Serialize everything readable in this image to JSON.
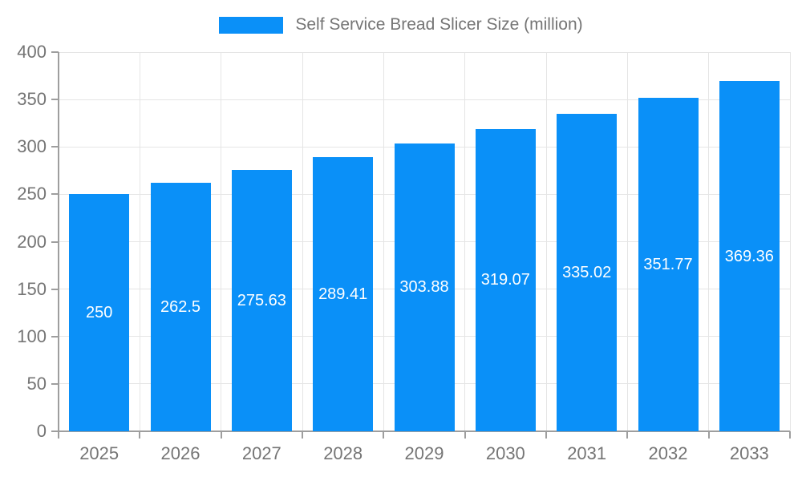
{
  "chart_data": {
    "type": "bar",
    "title": "Self Service Bread Slicer Size (million)",
    "categories": [
      "2025",
      "2026",
      "2027",
      "2028",
      "2029",
      "2030",
      "2031",
      "2032",
      "2033"
    ],
    "series": [
      {
        "name": "Self Service Bread Slicer Size (million)",
        "values": [
          250,
          262.5,
          275.63,
          289.41,
          303.88,
          319.07,
          335.02,
          351.77,
          369.36
        ]
      }
    ],
    "bar_labels": [
      "250",
      "262.5",
      "275.63",
      "289.41",
      "303.88",
      "319.07",
      "335.02",
      "351.77",
      "369.36"
    ],
    "xlabel": "",
    "ylabel": "",
    "ylim": [
      0,
      400
    ],
    "ytick_step": 50,
    "ytick_labels": [
      "0",
      "50",
      "100",
      "150",
      "200",
      "250",
      "300",
      "350",
      "400"
    ],
    "grid": true,
    "legend_position": "top-center",
    "colors": {
      "bar": "#0A90F8",
      "axis_text": "#757575",
      "bar_label_text": "#FFFFFF",
      "grid_line": "#E5E5E5",
      "axis_line": "#9E9E9E",
      "background": "#FFFFFF"
    }
  }
}
